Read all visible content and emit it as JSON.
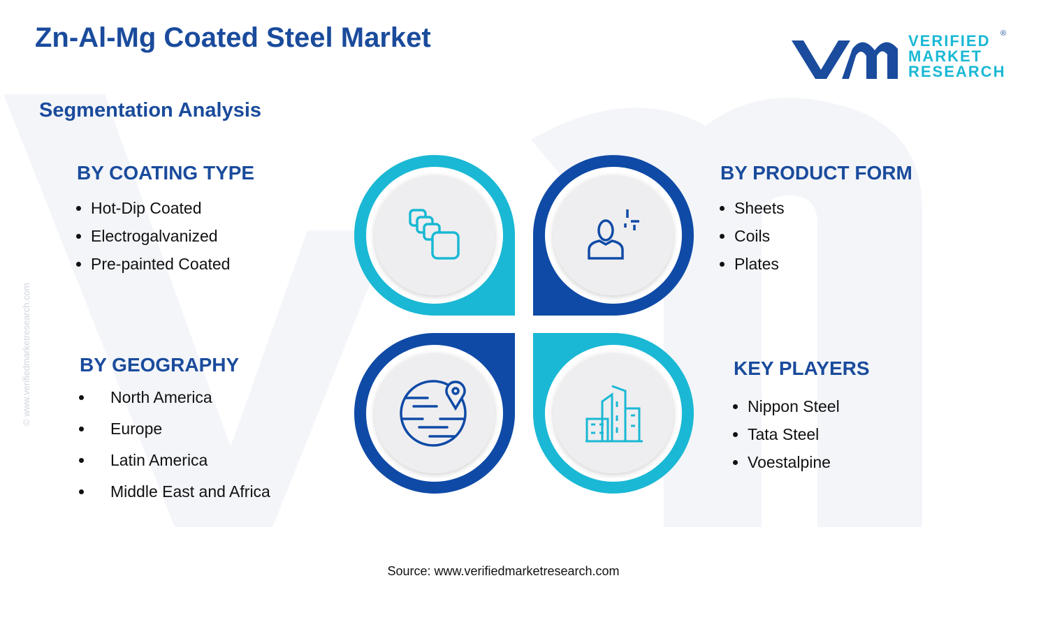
{
  "header": {
    "title": "Zn-Al-Mg Coated Steel Market",
    "subtitle": "Segmentation Analysis"
  },
  "logo": {
    "lines": [
      "VERIFIED",
      "MARKET",
      "RESEARCH"
    ],
    "mark": "®"
  },
  "side_text": "© www.verifiedmarketresearch.com",
  "segments": [
    {
      "title": "BY COATING TYPE",
      "items": [
        "Hot-Dip Coated",
        "Electrogalvanized",
        "Pre-painted Coated"
      ]
    },
    {
      "title": "BY PRODUCT FORM",
      "items": [
        "Sheets",
        "Coils",
        "Plates"
      ]
    },
    {
      "title": "BY GEOGRAPHY",
      "items": [
        "North America",
        "Europe",
        "Latin America",
        "Middle East and Africa"
      ]
    },
    {
      "title": "KEY PLAYERS",
      "items": [
        "Nippon Steel",
        "Tata Steel",
        "Voestalpine"
      ]
    }
  ],
  "footer": {
    "source": "Source: www.verifiedmarketresearch.com"
  }
}
